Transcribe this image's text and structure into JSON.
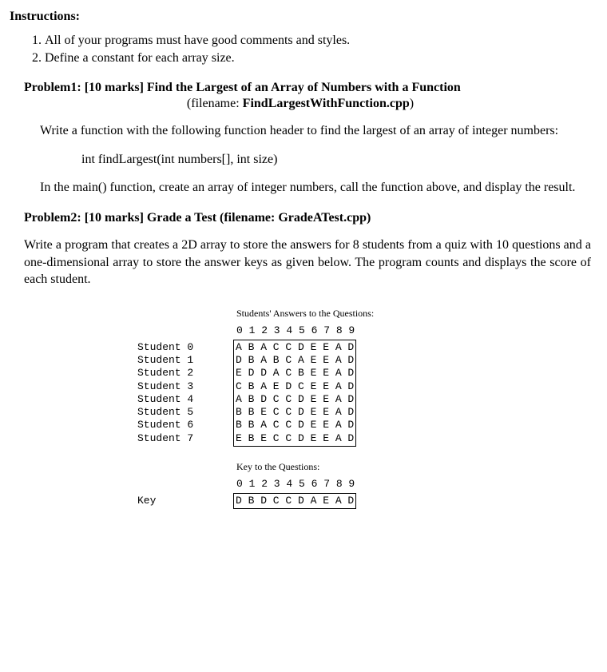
{
  "instructions": {
    "heading": "Instructions:",
    "items": [
      "All of your programs must have good comments and styles.",
      "Define a constant for each array size."
    ]
  },
  "problem1": {
    "title_prefix": "Problem1: [10 marks] Find the Largest of an Array of Numbers with a Function",
    "subtitle_plain": "(filename: ",
    "subtitle_bold": "FindLargestWithFunction.cpp",
    "subtitle_close": ")",
    "para1": "Write a function with the following function header to find the largest of an array of integer numbers:",
    "signature": "int findLargest(int numbers[], int size)",
    "para2": "In the main() function, create an array of integer numbers, call the function above, and display the result."
  },
  "problem2": {
    "title_bold": "Problem2: [10 marks] Grade a Test ",
    "title_plain1": "(filename: ",
    "title_bold2": "GradeATest.cpp",
    "title_plain2": ")",
    "para": "Write a program that creates a 2D array to store the answers for 8 students from a quiz with 10 questions and a one-dimensional array to store the answer keys as given below. The program counts and displays the score of each student."
  },
  "answers_table": {
    "caption": "Students' Answers to the Questions:",
    "col_header": "0 1 2 3 4 5 6 7 8 9",
    "rows": [
      {
        "label": "Student 0",
        "cells": "A B A C C D E E A D"
      },
      {
        "label": "Student 1",
        "cells": "D B A B C A E E A D"
      },
      {
        "label": "Student 2",
        "cells": "E D D A C B E E A D"
      },
      {
        "label": "Student 3",
        "cells": "C B A E D C E E A D"
      },
      {
        "label": "Student 4",
        "cells": "A B D C C D E E A D"
      },
      {
        "label": "Student 5",
        "cells": "B B E C C D E E A D"
      },
      {
        "label": "Student 6",
        "cells": "B B A C C D E E A D"
      },
      {
        "label": "Student 7",
        "cells": "E B E C C D E E A D"
      }
    ]
  },
  "key_table": {
    "caption": "Key to the Questions:",
    "col_header": "0 1 2 3 4 5 6 7 8 9",
    "label": "Key",
    "cells": "D B D C C D A E A D"
  }
}
